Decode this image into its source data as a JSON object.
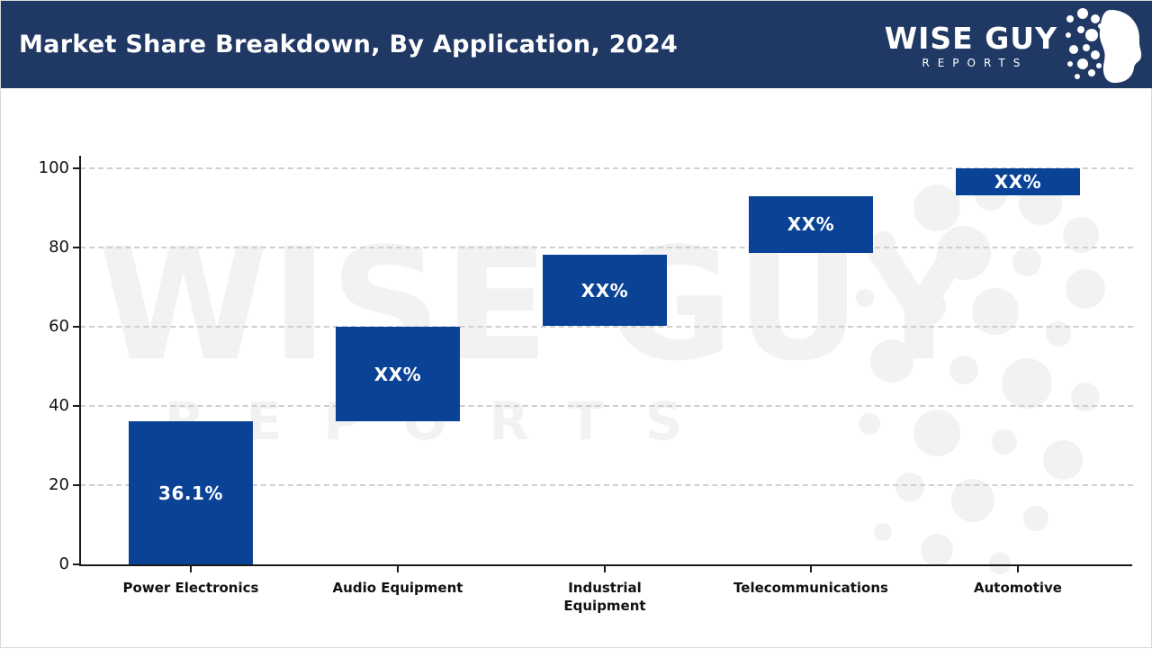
{
  "header": {
    "title": "Market Share Breakdown, By Application, 2024",
    "logo": {
      "line1": "WISE GUY",
      "line2": "REPORTS"
    }
  },
  "watermark": {
    "line1": "WISE GUY",
    "line2": "REPORTS"
  },
  "colors": {
    "header_bg": "#203864",
    "bar": "#0a4296",
    "grid": "#cfcfcf",
    "axis": "#1a1a1a",
    "bar_label": "#ffffff",
    "text": "#111111",
    "watermark": "#f2f2f2"
  },
  "chart_data": {
    "type": "bar",
    "subtype": "cascading-stacked-breakdown",
    "title": "Market Share Breakdown, By Application, 2024",
    "categories": [
      "Power Electronics",
      "Audio Equipment",
      "Industrial\nEquipment",
      "Telecommunications",
      "Automotive"
    ],
    "segments": [
      {
        "category": "Power Electronics",
        "label": "36.1%",
        "start": 0,
        "end": 36.1
      },
      {
        "category": "Audio Equipment",
        "label": "XX%",
        "start": 36.1,
        "end": 60.0
      },
      {
        "category": "Industrial Equipment",
        "label": "XX%",
        "start": 60.3,
        "end": 78.1
      },
      {
        "category": "Telecommunications",
        "label": "XX%",
        "start": 78.6,
        "end": 93.0
      },
      {
        "category": "Automotive",
        "label": "XX%",
        "start": 93.2,
        "end": 99.9
      }
    ],
    "ylim": [
      0,
      100
    ],
    "yticks": [
      0,
      20,
      40,
      60,
      80,
      100
    ],
    "grid": "horizontal dashed",
    "legend": "none"
  }
}
